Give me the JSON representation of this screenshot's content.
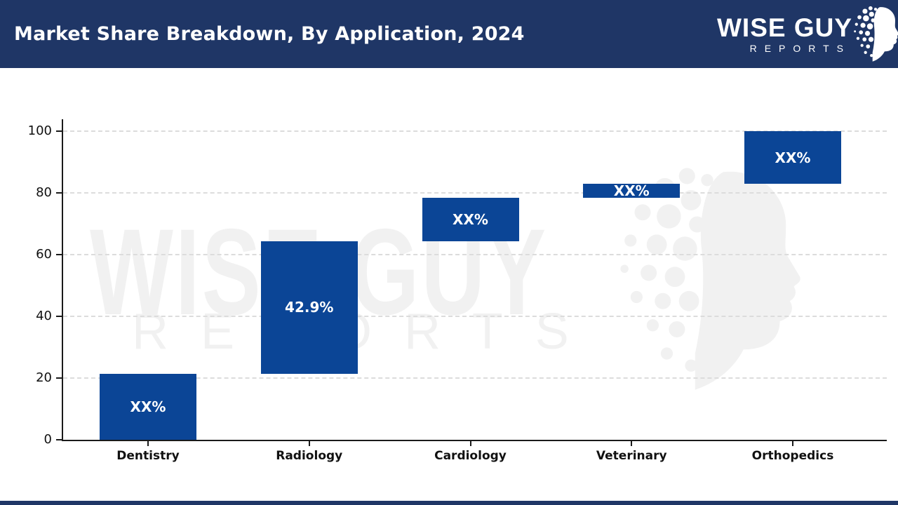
{
  "header": {
    "title": "Market Share Breakdown, By Application, 2024",
    "logo": {
      "line1": "WISE GUY",
      "line2": "REPORTS"
    }
  },
  "watermark": {
    "line1": "WISE GUY",
    "line2": "REPORTS"
  },
  "colors": {
    "header_bg": "#1f3666",
    "bar": "#0b4596",
    "grid": "#dcdcdc",
    "axis": "#1a1a1a",
    "bar_label": "#ffffff",
    "watermark": "#f1f1f1"
  },
  "chart_data": {
    "type": "bar",
    "subtype": "waterfall",
    "title": "Market Share Breakdown, By Application, 2024",
    "xlabel": "",
    "ylabel": "",
    "ylim": [
      0,
      100
    ],
    "yticks": [
      0,
      20,
      40,
      60,
      80,
      100
    ],
    "grid": "horizontal-dashed",
    "legend": "none",
    "categories": [
      "Dentistry",
      "Radiology",
      "Cardiology",
      "Veterinary",
      "Orthopedics"
    ],
    "segments": [
      {
        "category": "Dentistry",
        "start": 0,
        "end": 21.4,
        "value_label": "XX%"
      },
      {
        "category": "Radiology",
        "start": 21.4,
        "end": 64.3,
        "value_label": "42.9%"
      },
      {
        "category": "Cardiology",
        "start": 64.3,
        "end": 78.3,
        "value_label": "XX%"
      },
      {
        "category": "Veterinary",
        "start": 78.3,
        "end": 82.9,
        "value_label": "XX%"
      },
      {
        "category": "Orthopedics",
        "start": 82.9,
        "end": 100,
        "value_label": "XX%"
      }
    ]
  }
}
